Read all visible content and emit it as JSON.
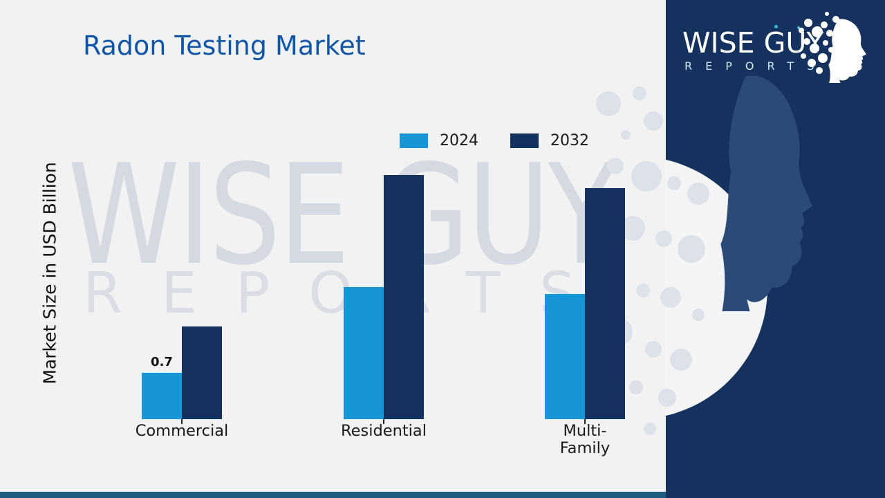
{
  "page": {
    "background_color": "#f1f2f3",
    "bottom_bar_color": "#1e5d7d"
  },
  "watermark": {
    "line1": "WISE GUY",
    "line2": "REPORTS"
  },
  "brand": {
    "panel_color": "#14325d",
    "logo_line1": "WISE GUY",
    "logo_line2": "REPORTS",
    "face_icon": "face-profile-dots",
    "face_color": "#ffffff",
    "decor_face_color": "#2b4a78"
  },
  "chart_data": {
    "type": "bar",
    "title": "Radon Testing Market",
    "title_color": "#1155a5",
    "xlabel": "",
    "ylabel": "Market Size in USD Billion",
    "categories": [
      "Commercial",
      "Residential",
      "Multi-Family"
    ],
    "category_display_lines": [
      [
        "Commercial"
      ],
      [
        "Residential"
      ],
      [
        "Multi-",
        "Family"
      ]
    ],
    "series": [
      {
        "name": "2024",
        "color": "#1696d6",
        "values": [
          0.7,
          2.0,
          1.9
        ]
      },
      {
        "name": "2032",
        "color": "#15325e",
        "values": [
          1.4,
          3.7,
          3.5
        ]
      }
    ],
    "bar_labels": [
      {
        "series_index": 0,
        "category_index": 0,
        "text": "0.7"
      }
    ],
    "legend": {
      "position": "top",
      "entries": [
        "2024",
        "2032"
      ]
    },
    "grid": false,
    "ylim": [
      0,
      4.2
    ],
    "unit": "USD Billion"
  }
}
